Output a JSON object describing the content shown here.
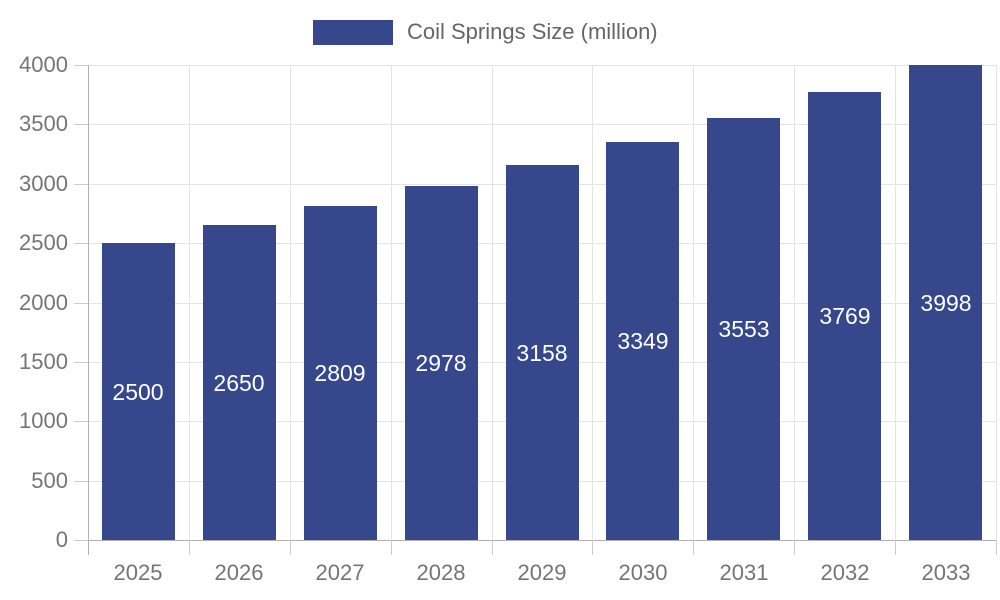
{
  "chart_data": {
    "type": "bar",
    "title": "",
    "categories": [
      "2025",
      "2026",
      "2027",
      "2028",
      "2029",
      "2030",
      "2031",
      "2032",
      "2033"
    ],
    "series": [
      {
        "name": "Coil Springs Size (million)",
        "values": [
          2500,
          2650,
          2809,
          2978,
          3158,
          3349,
          3553,
          3769,
          3998
        ]
      }
    ],
    "value_labels_shown": true,
    "xlabel": "",
    "ylabel": "",
    "ylim": [
      0,
      4000
    ],
    "ytick_step": 500,
    "ytick_labels": [
      "0",
      "500",
      "1000",
      "1500",
      "2000",
      "2500",
      "3000",
      "3500",
      "4000"
    ],
    "legend_position": "top-center",
    "grid": true,
    "colors": {
      "bar": "#36478C",
      "value_label": "#ffffff",
      "axis_text": "#757575",
      "legend_text": "#666666",
      "grid_line": "#e4e4e4",
      "axis_line": "#b0b0b0",
      "tick_line": "#cccccc"
    }
  }
}
